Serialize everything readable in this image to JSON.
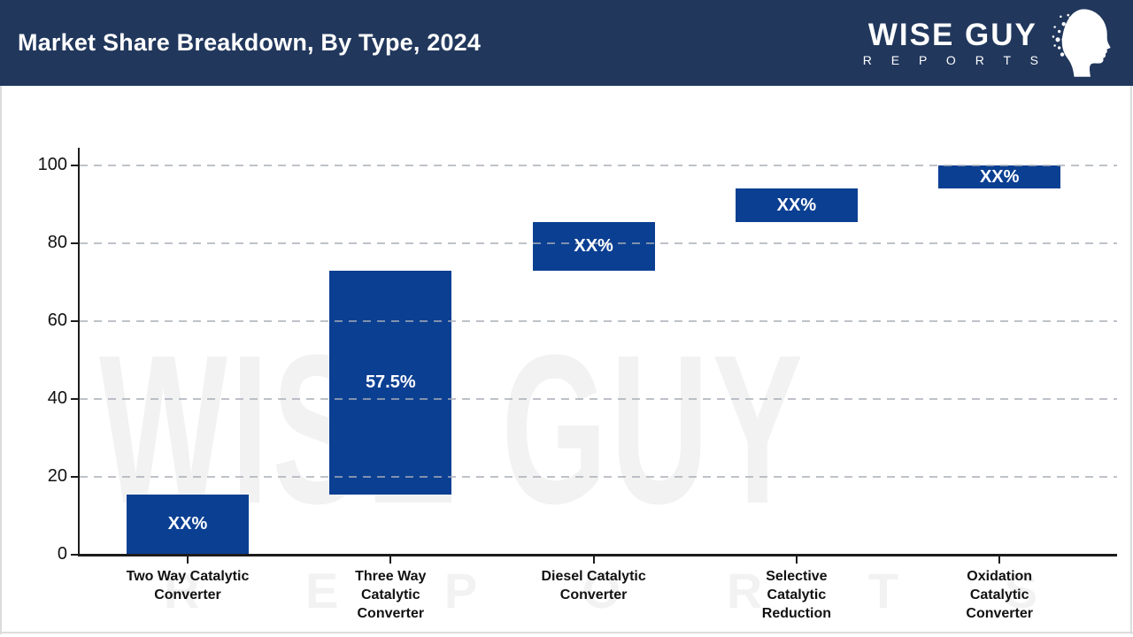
{
  "header": {
    "title": "Market Share Breakdown, By Type, 2024",
    "logo": {
      "name": "WISE GUY",
      "sub": "R E P O R T S"
    }
  },
  "watermark": {
    "line1": "WISE GUY",
    "line2": "R E P O R T S"
  },
  "colors": {
    "header_bg": "#21375c",
    "bar_fill": "#0b3f92",
    "axis": "#1c1c1c",
    "grid_on_white": "#d9d9d9",
    "bar_label_text": "#ffffff",
    "title_text": "#ffffff",
    "watermark": "#f2f2f2",
    "panel_border": "#dcdcdc"
  },
  "chart_data": {
    "type": "bar",
    "subtype": "waterfall",
    "title": "Market Share Breakdown, By Type, 2024",
    "xlabel": "",
    "ylabel": "",
    "ylim": [
      0,
      100
    ],
    "yticks": [
      0,
      20,
      40,
      60,
      80,
      100
    ],
    "grid": "horizontal-dashed",
    "legend": "none",
    "categories": [
      "Two Way Catalytic Converter",
      "Three Way Catalytic Converter",
      "Diesel Catalytic Converter",
      "Selective Catalytic Reduction",
      "Oxidation Catalytic Converter"
    ],
    "category_label_lines": [
      [
        "Two Way Catalytic",
        "Converter"
      ],
      [
        "Three Way",
        "Catalytic",
        "Converter"
      ],
      [
        "Diesel Catalytic",
        "Converter"
      ],
      [
        "Selective",
        "Catalytic",
        "Reduction"
      ],
      [
        "Oxidation",
        "Catalytic",
        "Converter"
      ]
    ],
    "bar_segments": [
      {
        "category": "Two Way Catalytic Converter",
        "start": 0,
        "end": 15.5,
        "value_estimated": 15.5,
        "label": "XX%"
      },
      {
        "category": "Three Way Catalytic Converter",
        "start": 15.5,
        "end": 73,
        "value_estimated": 57.5,
        "label": "57.5%"
      },
      {
        "category": "Diesel Catalytic Converter",
        "start": 73,
        "end": 85.5,
        "value_estimated": 12.5,
        "label": "XX%"
      },
      {
        "category": "Selective Catalytic Reduction",
        "start": 85.5,
        "end": 94,
        "value_estimated": 8.5,
        "label": "XX%"
      },
      {
        "category": "Oxidation Catalytic Converter",
        "start": 94,
        "end": 100,
        "value_estimated": 6,
        "label": "XX%"
      }
    ]
  }
}
